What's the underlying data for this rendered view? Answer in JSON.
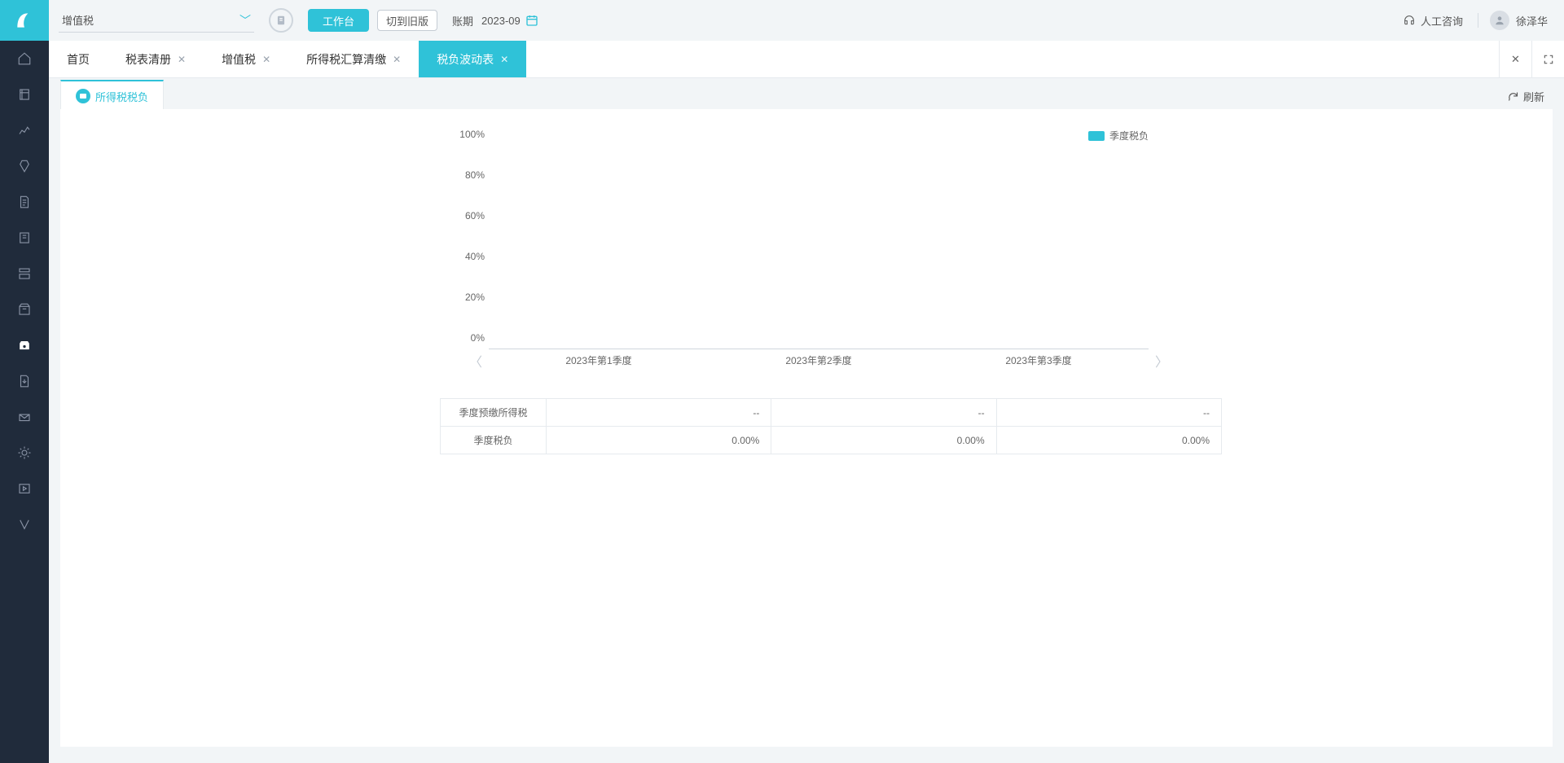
{
  "brand_color": "#2fc2d8",
  "sidebar": {
    "items": [
      {
        "name": "nav-home"
      },
      {
        "name": "nav-ledger"
      },
      {
        "name": "nav-analytics"
      },
      {
        "name": "nav-funds"
      },
      {
        "name": "nav-reports"
      },
      {
        "name": "nav-docs"
      },
      {
        "name": "nav-archive"
      },
      {
        "name": "nav-finance"
      },
      {
        "name": "nav-tax",
        "active": true
      },
      {
        "name": "nav-export"
      },
      {
        "name": "nav-inbox"
      },
      {
        "name": "nav-settings"
      },
      {
        "name": "nav-media"
      },
      {
        "name": "nav-v"
      }
    ]
  },
  "topbar": {
    "company": "增值税",
    "workbench_btn": "工作台",
    "switch_old_btn": "切到旧版",
    "period_label": "账期",
    "period_value": "2023-09",
    "support_label": "人工咨询",
    "username": "徐泽华"
  },
  "tabs": [
    {
      "label": "首页",
      "closable": false
    },
    {
      "label": "税表清册",
      "closable": true
    },
    {
      "label": "增值税",
      "closable": true
    },
    {
      "label": "所得税汇算清缴",
      "closable": true
    },
    {
      "label": "税负波动表",
      "closable": true,
      "active": true
    }
  ],
  "subtab": {
    "label": "所得税税负"
  },
  "toolbar": {
    "refresh_label": "刷新"
  },
  "chart": {
    "type": "bar",
    "legend_label": "季度税负",
    "legend_color": "#2fc2d8",
    "ylim": [
      0,
      100
    ],
    "ytick_step": 20,
    "y_suffix": "%",
    "categories": [
      "2023年第1季度",
      "2023年第2季度",
      "2023年第3季度"
    ],
    "values": [
      0,
      0,
      0
    ],
    "axis_color": "#d0d6dd",
    "tick_font_color": "#666666",
    "tick_fontsize": 12,
    "background_color": "#ffffff"
  },
  "table": {
    "rows": [
      {
        "label": "季度预缴所得税",
        "cells": [
          "--",
          "--",
          "--"
        ]
      },
      {
        "label": "季度税负",
        "cells": [
          "0.00%",
          "0.00%",
          "0.00%"
        ]
      }
    ]
  }
}
